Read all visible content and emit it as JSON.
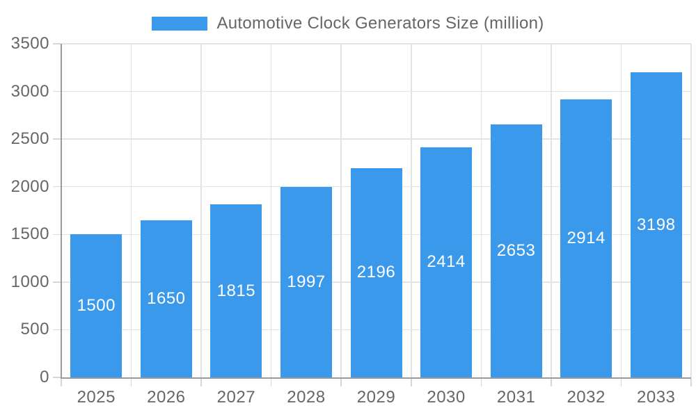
{
  "chart_data": {
    "type": "bar",
    "title": "Automotive Clock Generators Size (million)",
    "legend": {
      "label": "Automotive Clock Generators Size (million)",
      "position": "top"
    },
    "categories": [
      "2025",
      "2026",
      "2027",
      "2028",
      "2029",
      "2030",
      "2031",
      "2032",
      "2033"
    ],
    "series": [
      {
        "name": "Automotive Clock Generators Size (million)",
        "values": [
          1500,
          1650,
          1815,
          1997,
          2196,
          2414,
          2653,
          2914,
          3198
        ]
      }
    ],
    "xlabel": "",
    "ylabel": "",
    "ylim": [
      0,
      3500
    ],
    "ytick_step": 500,
    "yticks": [
      0,
      500,
      1000,
      1500,
      2000,
      2500,
      3000,
      3500
    ],
    "grid": true,
    "legend_position": "top",
    "colors": {
      "bar": "#3B99EC",
      "value_label": "#ffffff",
      "axis_text": "#666666",
      "grid": "#e3e3e3",
      "axis_line": "#9a9a9a",
      "tick": "#d6d6d6"
    }
  }
}
